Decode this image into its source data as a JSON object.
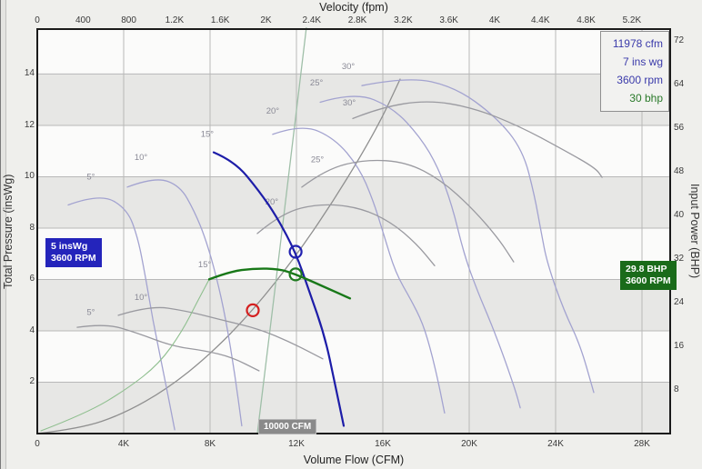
{
  "titles": {
    "top": "Velocity (fpm)",
    "bottom": "Volume Flow (CFM)",
    "left": "Total Pressure (insWg)",
    "right": "Input Power (BHP)"
  },
  "legend": {
    "items": [
      {
        "text": "11978 cfm",
        "color": "#3a3aaa"
      },
      {
        "text": "7 ins wg",
        "color": "#3a3aaa"
      },
      {
        "text": "3600 rpm",
        "color": "#3a3aaa"
      },
      {
        "text": "30 bhp",
        "color": "#2a7a2a"
      }
    ]
  },
  "badges": {
    "pressure": {
      "line1": "5 insWg",
      "line2": "3600 RPM"
    },
    "power": {
      "line1": "29.8 BHP",
      "line2": "3600 RPM"
    },
    "flow": {
      "text": "10000 CFM"
    }
  },
  "colors": {
    "band": "#e7e7e5",
    "plot_bg": "#fbfbfa",
    "grid": "#b8b8b8",
    "border": "#1a1a1a",
    "pressure_curve": "#a3a3d0",
    "selected_pressure": "#1d1da8",
    "power_curve": "#9a9aa0",
    "selected_power": "#187818",
    "system": "#8f8f8f",
    "flow_line": "#9fbfa8",
    "curve_label": "#8a8a96"
  },
  "chart_data": {
    "type": "line",
    "x_axis_bottom": {
      "label": "Volume Flow (CFM)",
      "range": [
        0,
        29305
      ],
      "tick_values": [
        0,
        4000,
        8000,
        12000,
        16000,
        20000,
        24000,
        28000
      ],
      "tick_labels": [
        "0",
        "4K",
        "8K",
        "12K",
        "16K",
        "20K",
        "24K",
        "28K"
      ]
    },
    "x_axis_top": {
      "label": "Velocity (fpm)",
      "range": [
        0,
        5535
      ],
      "tick_values": [
        0,
        400,
        800,
        1200,
        1600,
        2000,
        2400,
        2800,
        3200,
        3600,
        4000,
        4400,
        4800,
        5200
      ],
      "tick_labels": [
        "0",
        "400",
        "800",
        "1.2K",
        "1.6K",
        "2K",
        "2.4K",
        "2.8K",
        "3.2K",
        "3.6K",
        "4K",
        "4.4K",
        "4.8K",
        "5.2K"
      ]
    },
    "y_axis_left": {
      "label": "Total Pressure (insWg)",
      "range": [
        0,
        15.75
      ],
      "tick_values": [
        2,
        4,
        6,
        8,
        10,
        12,
        14
      ],
      "band_pairs": [
        [
          0,
          2
        ],
        [
          4,
          6
        ],
        [
          8,
          10
        ],
        [
          12,
          14
        ]
      ]
    },
    "y_axis_right": {
      "label": "Input Power (BHP)",
      "range": [
        0,
        74.2
      ],
      "tick_values": [
        8,
        16,
        24,
        32,
        40,
        48,
        56,
        64,
        72
      ]
    },
    "series": [
      {
        "name": "system-curve",
        "axis": "left",
        "color": "#8f8f8f",
        "width": 1.3,
        "points": [
          [
            0,
            0
          ],
          [
            2000,
            0.19
          ],
          [
            4000,
            0.77
          ],
          [
            6000,
            1.73
          ],
          [
            8000,
            3.08
          ],
          [
            10000,
            4.81
          ],
          [
            12000,
            6.93
          ],
          [
            14000,
            9.43
          ],
          [
            15800,
            12.0
          ],
          [
            16800,
            13.8
          ]
        ]
      },
      {
        "name": "flow-marker-line-10000cfm",
        "axis": "left",
        "color": "#9fbfa8",
        "width": 1.3,
        "points": [
          [
            10190,
            0
          ],
          [
            10770,
            4.0
          ],
          [
            11330,
            7.9
          ],
          [
            11900,
            11.9
          ],
          [
            12460,
            15.8
          ]
        ]
      },
      {
        "name": "pressure-curve-5deg",
        "axis": "left",
        "color": "#a3a3d0",
        "width": 1.3,
        "label": {
          "text": "5°",
          "at": [
            2480,
            9.9
          ]
        },
        "points": [
          [
            1430,
            8.9
          ],
          [
            2900,
            9.35
          ],
          [
            4170,
            8.75
          ],
          [
            4670,
            7.6
          ],
          [
            5010,
            6.1
          ],
          [
            5350,
            4.4
          ],
          [
            5770,
            2.7
          ],
          [
            6360,
            0.15
          ]
        ]
      },
      {
        "name": "pressure-curve-10deg",
        "axis": "left",
        "color": "#a3a3d0",
        "width": 1.3,
        "label": {
          "text": "10°",
          "at": [
            4800,
            10.65
          ]
        },
        "points": [
          [
            4170,
            9.6
          ],
          [
            5430,
            10.0
          ],
          [
            6610,
            9.65
          ],
          [
            7280,
            8.65
          ],
          [
            7790,
            7.6
          ],
          [
            8300,
            6.1
          ],
          [
            8720,
            4.5
          ],
          [
            9140,
            2.35
          ],
          [
            9470,
            0.3
          ]
        ]
      },
      {
        "name": "pressure-curve-20deg",
        "axis": "left",
        "color": "#a3a3d0",
        "width": 1.3,
        "label": {
          "text": "20°",
          "at": [
            10900,
            12.45
          ]
        },
        "points": [
          [
            10900,
            11.65
          ],
          [
            12250,
            12.05
          ],
          [
            13770,
            11.5
          ],
          [
            14910,
            10.35
          ],
          [
            15540,
            9.1
          ],
          [
            16040,
            7.75
          ],
          [
            16590,
            6.25
          ],
          [
            17310,
            5.2
          ],
          [
            17850,
            4.3
          ],
          [
            18270,
            3.1
          ],
          [
            18610,
            1.85
          ],
          [
            18860,
            0.8
          ]
        ]
      },
      {
        "name": "pressure-curve-25deg",
        "axis": "left",
        "color": "#a3a3d0",
        "width": 1.3,
        "label": {
          "text": "25°",
          "at": [
            12930,
            13.55
          ]
        },
        "points": [
          [
            13100,
            12.9
          ],
          [
            14700,
            13.3
          ],
          [
            16460,
            12.7
          ],
          [
            17730,
            11.55
          ],
          [
            18570,
            10.35
          ],
          [
            19200,
            8.9
          ],
          [
            19750,
            7.0
          ],
          [
            20380,
            5.55
          ],
          [
            21010,
            4.3
          ],
          [
            21640,
            2.9
          ],
          [
            22150,
            1.65
          ],
          [
            22360,
            1.0
          ]
        ]
      },
      {
        "name": "pressure-curve-30deg",
        "axis": "left",
        "color": "#a3a3d0",
        "width": 1.3,
        "label": {
          "text": "30°",
          "at": [
            14400,
            14.2
          ]
        },
        "points": [
          [
            15030,
            13.55
          ],
          [
            17140,
            13.9
          ],
          [
            19330,
            13.5
          ],
          [
            21220,
            12.35
          ],
          [
            22480,
            11.05
          ],
          [
            23030,
            9.25
          ],
          [
            23330,
            7.85
          ],
          [
            23620,
            6.6
          ],
          [
            24380,
            4.8
          ],
          [
            25140,
            3.45
          ],
          [
            25770,
            1.6
          ]
        ]
      },
      {
        "name": "power-curve-5deg",
        "axis": "right",
        "color": "#9a9aa0",
        "width": 1.3,
        "label": {
          "text": "5°",
          "at": [
            2480,
            21.8
          ]
        },
        "points": [
          [
            1850,
            19.5
          ],
          [
            3120,
            20.2
          ],
          [
            4590,
            18.5
          ],
          [
            6270,
            16.0
          ],
          [
            7750,
            15.2
          ],
          [
            9010,
            14.0
          ],
          [
            10270,
            11.5
          ]
        ]
      },
      {
        "name": "power-curve-10deg",
        "axis": "right",
        "color": "#9a9aa0",
        "width": 1.3,
        "label": {
          "text": "10°",
          "at": [
            4800,
            24.5
          ]
        },
        "points": [
          [
            3750,
            21.7
          ],
          [
            5220,
            23.5
          ],
          [
            6910,
            22.5
          ],
          [
            8590,
            20.8
          ],
          [
            10270,
            19.2
          ],
          [
            11750,
            16.7
          ],
          [
            13220,
            13.7
          ]
        ]
      },
      {
        "name": "power-curve-20deg",
        "axis": "right",
        "color": "#9a9aa0",
        "width": 1.3,
        "label": {
          "text": "20°",
          "at": [
            10860,
            42.0
          ]
        },
        "points": [
          [
            10190,
            36.7
          ],
          [
            11330,
            40.5
          ],
          [
            13100,
            42.2
          ],
          [
            14910,
            41.5
          ],
          [
            16380,
            38.8
          ],
          [
            17560,
            34.8
          ],
          [
            18400,
            30.8
          ]
        ]
      },
      {
        "name": "power-curve-25deg",
        "axis": "right",
        "color": "#9a9aa0",
        "width": 1.3,
        "label": {
          "text": "25°",
          "at": [
            12970,
            49.8
          ]
        },
        "points": [
          [
            12250,
            45.2
          ],
          [
            13350,
            48.5
          ],
          [
            15200,
            50.3
          ],
          [
            17100,
            49.8
          ],
          [
            18700,
            46.5
          ],
          [
            20170,
            41.2
          ],
          [
            21350,
            35.8
          ],
          [
            22060,
            31.5
          ]
        ]
      },
      {
        "name": "power-curve-30deg",
        "axis": "right",
        "color": "#9a9aa0",
        "width": 1.3,
        "label": {
          "text": "30°",
          "at": [
            14440,
            60.2
          ]
        },
        "points": [
          [
            14610,
            57.8
          ],
          [
            15870,
            59.8
          ],
          [
            18060,
            61.2
          ],
          [
            20170,
            59.8
          ],
          [
            22270,
            56.5
          ],
          [
            24380,
            52.0
          ],
          [
            25850,
            48.7
          ],
          [
            26150,
            47.0
          ]
        ]
      },
      {
        "name": "power-curve-15deg-rise",
        "axis": "right",
        "color": "#8fbf8f",
        "width": 1.1,
        "points": [
          [
            170,
            0.5
          ],
          [
            2270,
            3.7
          ],
          [
            4170,
            8.2
          ],
          [
            5640,
            12.8
          ],
          [
            6700,
            18.7
          ],
          [
            7450,
            24.5
          ],
          [
            7960,
            28.3
          ]
        ]
      },
      {
        "name": "selected-pressure-curve-15deg",
        "axis": "left",
        "color": "#1d1da8",
        "width": 2.2,
        "label": {
          "text": "15°",
          "at": [
            7870,
            11.55
          ]
        },
        "points": [
          [
            8170,
            10.95
          ],
          [
            9140,
            10.6
          ],
          [
            10270,
            9.45
          ],
          [
            11120,
            8.4
          ],
          [
            11960,
            7.05
          ],
          [
            12590,
            5.55
          ],
          [
            13310,
            3.8
          ],
          [
            13770,
            2.0
          ],
          [
            14190,
            0.3
          ]
        ]
      },
      {
        "name": "selected-power-curve-15deg",
        "axis": "right",
        "color": "#187818",
        "width": 2.4,
        "label": {
          "text": "15°",
          "at": [
            7750,
            30.5
          ]
        },
        "points": [
          [
            7960,
            28.3
          ],
          [
            8880,
            29.7
          ],
          [
            10060,
            30.3
          ],
          [
            11200,
            30.2
          ],
          [
            11960,
            29.2
          ],
          [
            12670,
            28.0
          ],
          [
            13520,
            26.5
          ],
          [
            14480,
            24.8
          ]
        ]
      }
    ],
    "markers": [
      {
        "name": "duty-point-marker",
        "axis": "left",
        "cfm": 9980,
        "value": 4.8,
        "color": "#d42020"
      },
      {
        "name": "operating-point-pressure-marker",
        "axis": "left",
        "cfm": 11960,
        "value": 7.08,
        "color": "#2020b0"
      },
      {
        "name": "operating-point-power-marker",
        "axis": "right",
        "cfm": 11960,
        "value": 29.2,
        "color": "#1f7a1f"
      }
    ]
  }
}
